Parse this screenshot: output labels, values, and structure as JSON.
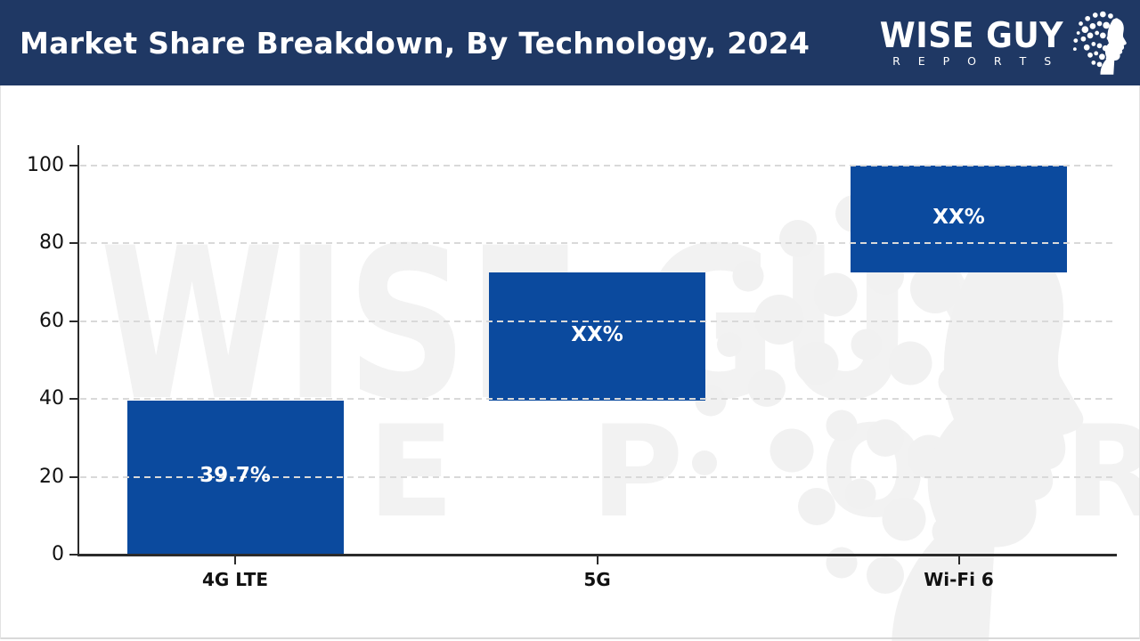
{
  "header": {
    "title": "Market Share Breakdown, By Technology, 2024",
    "logo": {
      "line1": "WISE GUY",
      "line2": "R E P O R T S"
    }
  },
  "watermark": {
    "line1": "WISE GUY",
    "line2": "R E P O R T S"
  },
  "colors": {
    "header_bg": "#1f3864",
    "bar": "#0b4a9e",
    "grid": "#d9d9d9",
    "axis": "#2b2b2b",
    "watermark": "#f2f2f2",
    "bar_label": "#ffffff",
    "title_text": "#ffffff"
  },
  "chart_data": {
    "type": "bar",
    "subtype": "floating-waterfall-columns",
    "title": "Market Share Breakdown, By Technology, 2024",
    "categories": [
      "4G LTE",
      "5G",
      "Wi-Fi 6"
    ],
    "bars": [
      {
        "category": "4G LTE",
        "start": 0,
        "end": 39.7,
        "value": 39.7,
        "label": "39.7%"
      },
      {
        "category": "5G",
        "start": 39.7,
        "end": 72.5,
        "value": 32.8,
        "label": "XX%"
      },
      {
        "category": "Wi-Fi 6",
        "start": 72.5,
        "end": 100,
        "value": 27.5,
        "label": "XX%"
      }
    ],
    "xlabel": "",
    "ylabel": "",
    "yticks": [
      0,
      20,
      40,
      60,
      80,
      100
    ],
    "ylim": [
      0,
      105
    ],
    "grid": "horizontal-dashed",
    "legend": "none"
  }
}
